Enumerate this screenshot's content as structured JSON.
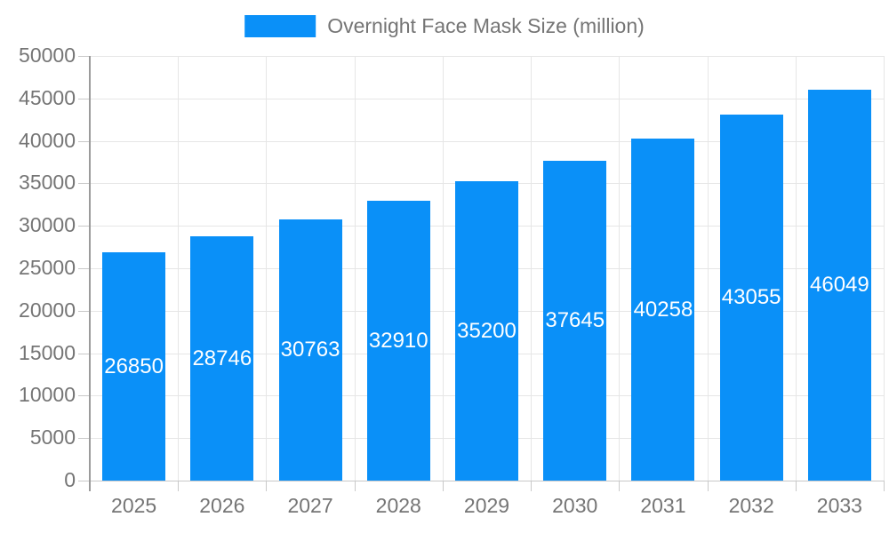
{
  "chart_data": {
    "type": "bar",
    "title": "Overnight Face Mask Size (million)",
    "categories": [
      "2025",
      "2026",
      "2027",
      "2028",
      "2029",
      "2030",
      "2031",
      "2032",
      "2033"
    ],
    "values": [
      26850,
      28746,
      30763,
      32910,
      35200,
      37645,
      40258,
      43055,
      46049
    ],
    "xlabel": "",
    "ylabel": "",
    "ylim": [
      0,
      50000
    ],
    "ytick_step": 5000,
    "grid": true,
    "legend_position": "top",
    "bar_color": "#0a90f8",
    "bar_label_color": "#ffffff",
    "axis_text_color": "#757575",
    "grid_color": "#e6e6e6",
    "axis_line_color": "#9b9b9b",
    "tick_color": "#c9c9c9",
    "baseline_color": "#c9c9c9"
  }
}
